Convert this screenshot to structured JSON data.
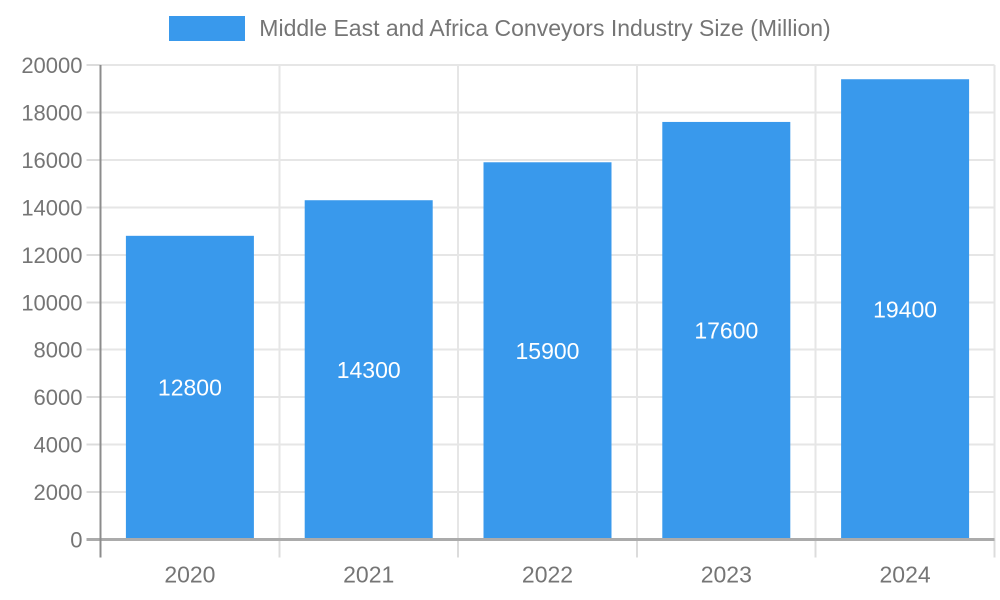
{
  "chart_data": {
    "type": "bar",
    "title": "Middle East and Africa Conveyors Industry Size (Million)",
    "categories": [
      "2020",
      "2021",
      "2022",
      "2023",
      "2024"
    ],
    "values": [
      12800,
      14300,
      15900,
      17600,
      19400
    ],
    "bar_labels": [
      "12800",
      "14300",
      "15900",
      "17600",
      "19400"
    ],
    "xlabel": "",
    "ylabel": "",
    "ylim": [
      0,
      20000
    ],
    "ytick_step": 2000,
    "ytick_labels": [
      "0",
      "2000",
      "4000",
      "6000",
      "8000",
      "10000",
      "12000",
      "14000",
      "16000",
      "18000",
      "20000"
    ],
    "grid": "on",
    "legend_position": "top-center",
    "colors": {
      "bar": "#3999EC",
      "grid": "#E6E6E6",
      "axis_y": "#8C8C8C",
      "axis_x": "#ABABAB",
      "tick": "#DCDCDC",
      "text": "#757575",
      "bar_label": "#FFFFFF"
    }
  }
}
